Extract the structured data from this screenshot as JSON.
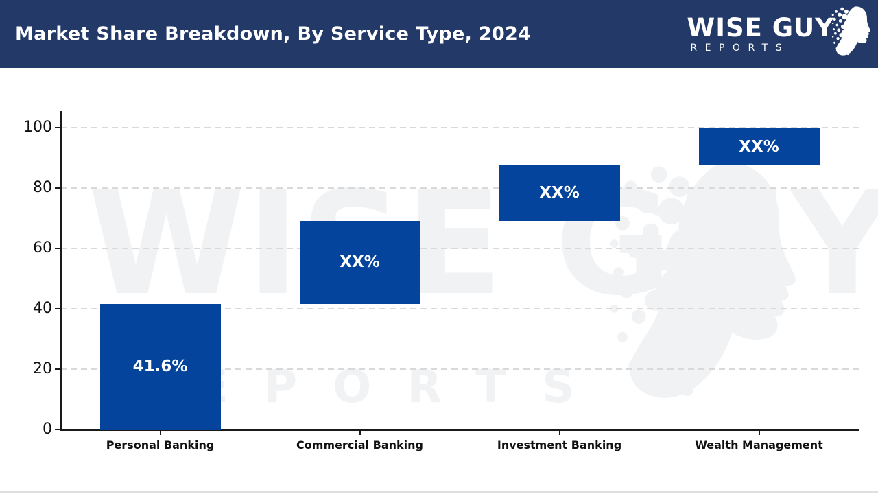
{
  "header": {
    "title": "Market Share Breakdown, By Service Type, 2024",
    "logo": {
      "line1": "WISE GUY",
      "line2": "REPORTS"
    }
  },
  "watermark": {
    "line1": "WISE GUY",
    "line2": "REPORTS"
  },
  "chart_data": {
    "type": "bar",
    "subtype": "waterfall",
    "title": "Market Share Breakdown, By Service Type, 2024",
    "xlabel": "",
    "ylabel": "",
    "ylim": [
      0,
      100
    ],
    "yticks": [
      "0",
      "20",
      "40",
      "60",
      "80",
      "100"
    ],
    "ytick_values": [
      0,
      20,
      40,
      60,
      80,
      100
    ],
    "grid": "horizontal-dashed",
    "categories": [
      "Personal Banking",
      "Commercial Banking",
      "Investment Banking",
      "Wealth Management"
    ],
    "segments": [
      {
        "category": "Personal Banking",
        "start": 0,
        "end": 41.6,
        "value": 41.6,
        "label": "41.6%"
      },
      {
        "category": "Commercial Banking",
        "start": 41.6,
        "end": 69.2,
        "value": 27.6,
        "label": "XX%"
      },
      {
        "category": "Investment Banking",
        "start": 69.2,
        "end": 87.5,
        "value": 18.3,
        "label": "XX%"
      },
      {
        "category": "Wealth Management",
        "start": 87.5,
        "end": 100,
        "value": 12.5,
        "label": "XX%"
      }
    ]
  },
  "colors": {
    "header_bg": "#233a69",
    "bar": "#05449c",
    "bar_label": "#ffffff",
    "gridline": "#d9d9d9",
    "axis": "#1a1a1a",
    "watermark": "#f1f2f4"
  }
}
